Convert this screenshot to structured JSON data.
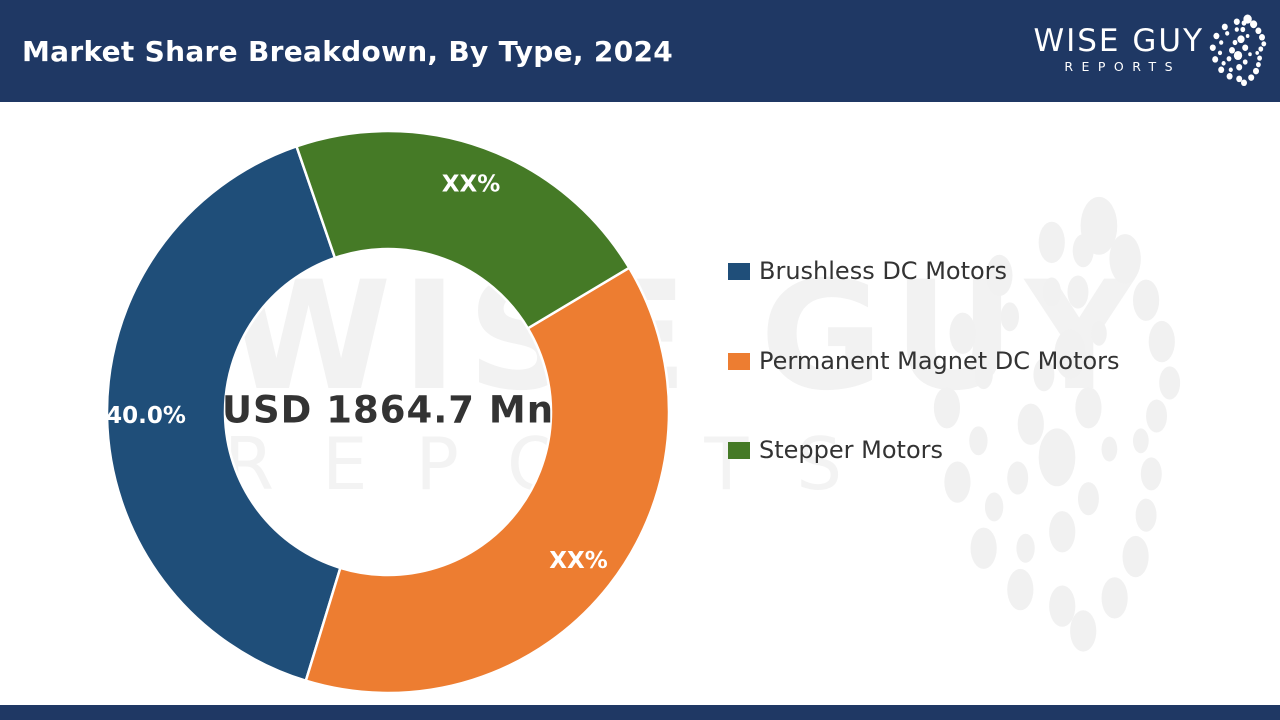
{
  "header": {
    "title": "Market Share Breakdown, By Type, 2024",
    "bg_color": "#1F3864",
    "logo": {
      "wordmark": "WISE GUY",
      "subtext": "REPORTS"
    }
  },
  "watermark": {
    "wordmark": "WISE GUY",
    "subtext": "REPORTS"
  },
  "chart_data": {
    "type": "pie",
    "subtype": "donut",
    "title": "Market Share Breakdown, By Type, 2024",
    "center_label": "USD 1864.7 Mn",
    "categories": [
      "Brushless DC Motors",
      "Permanent Magnet DC Motors",
      "Stepper Motors"
    ],
    "values": [
      40.0,
      38.3,
      21.7
    ],
    "slice_labels": [
      "40.0%",
      "XX%",
      "XX%"
    ],
    "colors": [
      "#1F4E79",
      "#ED7D31",
      "#457A26"
    ],
    "start_angle_deg": 109,
    "counterclockwise": true,
    "inner_radius_ratio": 0.58,
    "legend_position": "right"
  },
  "legend": {
    "items": [
      {
        "label": "Brushless DC Motors"
      },
      {
        "label": "Permanent Magnet DC Motors"
      },
      {
        "label": "Stepper Motors"
      }
    ]
  }
}
